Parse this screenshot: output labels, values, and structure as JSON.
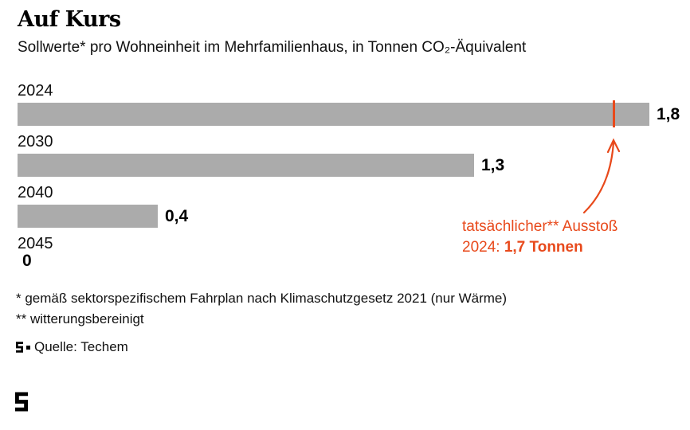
{
  "chart_data": {
    "type": "bar",
    "orientation": "horizontal",
    "title": "Auf Kurs",
    "subtitle": "Sollwerte* pro Wohneinheit im Mehrfamilienhaus, in Tonnen CO₂-Äquivalent",
    "categories": [
      "2024",
      "2030",
      "2040",
      "2045"
    ],
    "values": [
      1.8,
      1.3,
      0.4,
      0
    ],
    "value_labels": [
      "1,8",
      "1,3",
      "0,4",
      "0"
    ],
    "xlim": [
      0,
      1.8
    ],
    "grid": false,
    "legend": "none",
    "bar_color": "#ababab",
    "text_color": "#111111",
    "annotation": {
      "line1": "tatsächlicher** Ausstoß",
      "line2_prefix": "2024: ",
      "line2_bold": "1,7 Tonnen",
      "marker_value": 1.7,
      "marker_series": "2024",
      "color": "#e8491b"
    },
    "footnotes": [
      "* gemäß sektorspezifischem Fahrplan nach Klimaschutzgesetz 2021 (nur Wärme)",
      "** witterungsbereinigt"
    ],
    "source": "Quelle: Techem",
    "brand": "SPIEGEL S logo"
  }
}
